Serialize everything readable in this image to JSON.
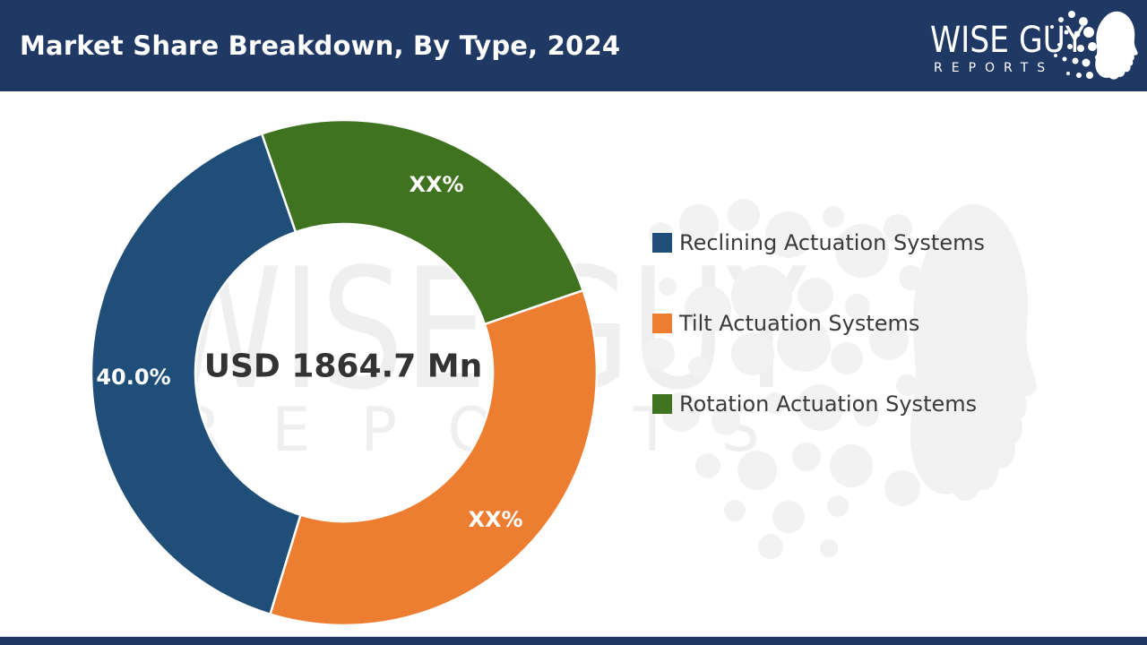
{
  "header": {
    "title": "Market Share Breakdown, By Type, 2024",
    "logo": {
      "name": "WISE GUY",
      "sub": "REPORTS"
    }
  },
  "watermark": {
    "line1": "WISE GUY",
    "line2": "REPORTS"
  },
  "colors": {
    "header_bar": "#1F3864",
    "footer_bar": "#1F3864",
    "watermark_text": "#efefef",
    "watermark_shape": "#f2f2f2"
  },
  "chart_data": {
    "type": "pie",
    "subtype": "donut",
    "title": "Market Share Breakdown, By Type, 2024",
    "center_label": "USD 1864.7 Mn",
    "legend_position": "right",
    "start_angle_deg": 253,
    "clockwise": true,
    "draw_order": [
      0,
      2,
      1
    ],
    "inner_radius_ratio": 0.59,
    "segments": [
      {
        "name": "Reclining Actuation Systems",
        "share_pct": 40.0,
        "label": "40.0%",
        "color": "#1F4E79"
      },
      {
        "name": "Tilt Actuation Systems",
        "share_pct": 35.0,
        "label": "XX%",
        "color": "#ED7D31"
      },
      {
        "name": "Rotation Actuation Systems",
        "share_pct": 25.0,
        "label": "XX%",
        "color": "#3F7320"
      }
    ]
  }
}
